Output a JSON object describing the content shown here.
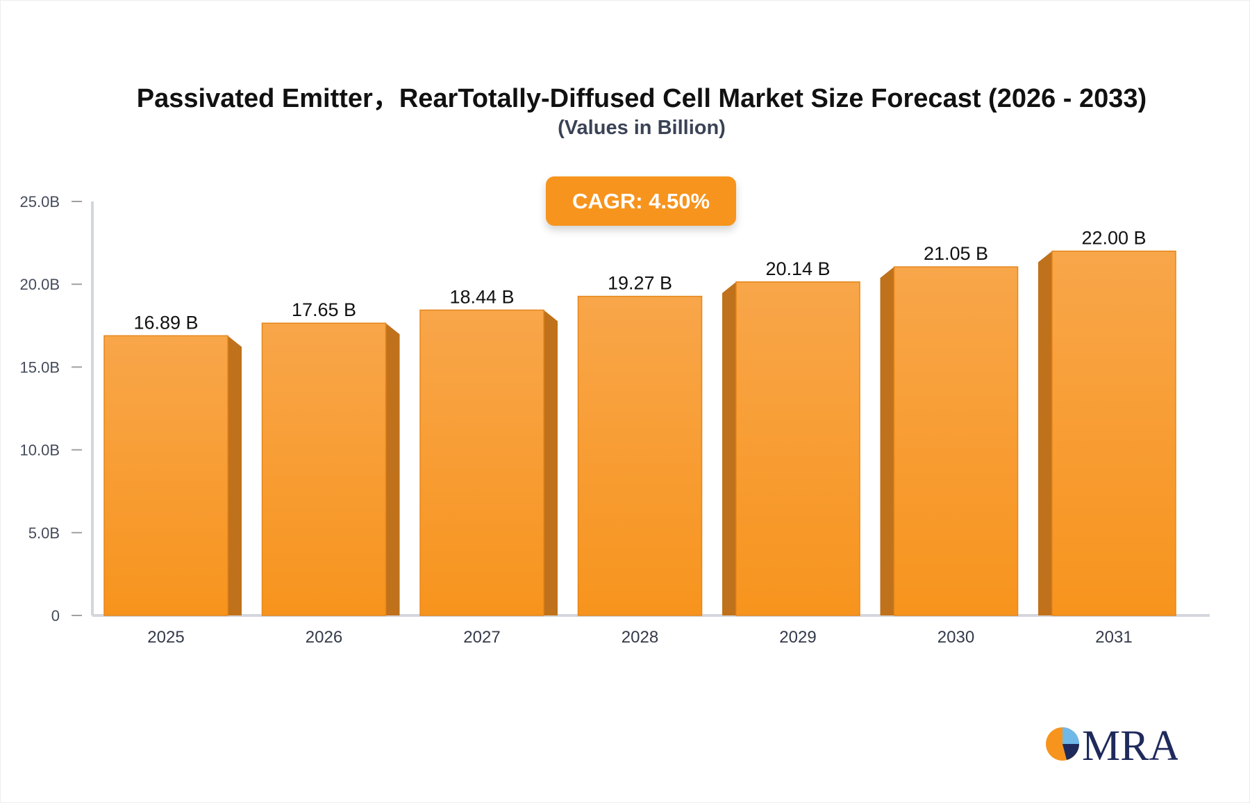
{
  "chart_data": {
    "type": "bar",
    "title": "Passivated Emitter，RearTotally-Diffused Cell Market Size Forecast (2026 - 2033)",
    "subtitle": "(Values in Billion)",
    "categories": [
      "2025",
      "2026",
      "2027",
      "2028",
      "2029",
      "2030",
      "2031"
    ],
    "values": [
      16.89,
      17.65,
      18.44,
      19.27,
      20.14,
      21.05,
      22.0
    ],
    "data_labels": [
      "16.89 B",
      "17.65 B",
      "18.44 B",
      "19.27 B",
      "20.14 B",
      "21.05 B",
      "22.00 B"
    ],
    "ylim": [
      0,
      25
    ],
    "yticks": [
      0,
      5,
      10,
      15,
      20,
      25
    ],
    "ytick_labels": [
      "0",
      "5.0B",
      "10.0B",
      "15.0B",
      "20.0B",
      "25.0B"
    ],
    "xlabel": "",
    "ylabel": "",
    "grid": false,
    "bar_color": "#f7941d",
    "annotation": "CAGR: 4.50%"
  },
  "logo": {
    "text": "MRA"
  }
}
